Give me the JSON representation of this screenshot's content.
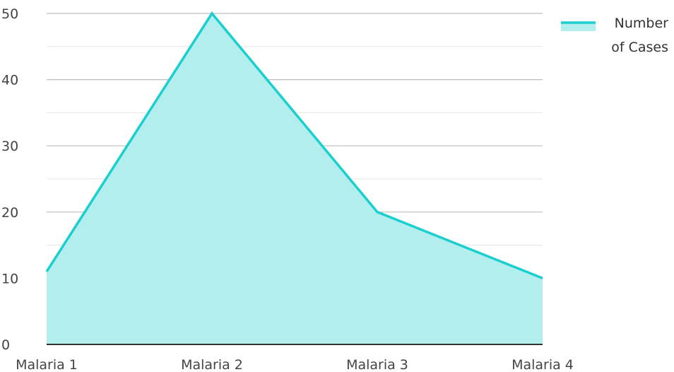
{
  "chart_data": {
    "type": "area",
    "title": "",
    "xlabel": "",
    "ylabel": "",
    "categories": [
      "Malaria 1",
      "Malaria 2",
      "Malaria 3",
      "Malaria 4"
    ],
    "series": [
      {
        "name": "Number of Cases",
        "values": [
          11,
          50,
          20,
          10
        ]
      }
    ],
    "ylim": [
      0,
      50
    ],
    "y_ticks": [
      0,
      10,
      20,
      30,
      40,
      50
    ],
    "grid": true,
    "legend": {
      "position": "top-right",
      "lines": [
        "Number",
        "of Cases"
      ]
    },
    "colors": {
      "line": "#1ccfcf",
      "fill": "#b2eeee",
      "grid_major": "#bdbdbd",
      "grid_minor": "#e6e6e6",
      "axis": "#333333"
    }
  }
}
